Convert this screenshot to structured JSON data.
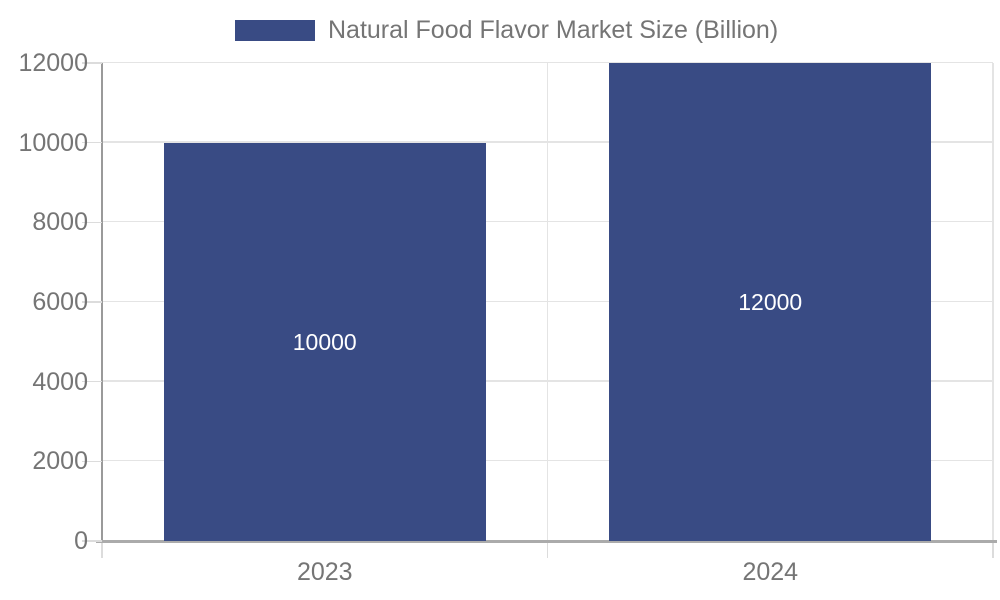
{
  "chart_data": {
    "type": "bar",
    "categories": [
      "2023",
      "2024"
    ],
    "series": [
      {
        "name": "Natural Food Flavor Market Size (Billion)",
        "values": [
          10000,
          12000
        ]
      }
    ],
    "bar_value_labels": [
      "10000",
      "12000"
    ],
    "title": "",
    "xlabel": "",
    "ylabel": "",
    "ylim": [
      0,
      12000
    ],
    "yticks": [
      0,
      2000,
      4000,
      6000,
      8000,
      10000,
      12000
    ],
    "grid": true,
    "legend": {
      "position": "top",
      "label": "Natural Food Flavor Market Size (Billion)"
    },
    "colors": {
      "bar": "#394b84",
      "bar_label_text": "#ffffff",
      "axis_text": "#757575",
      "grid_line": "#e4e4e4",
      "tick_line": "#dcdcdc",
      "y_axis_line": "#9a9a9a",
      "x_axis_line": "#ababab",
      "legend_text": "#757575"
    }
  }
}
